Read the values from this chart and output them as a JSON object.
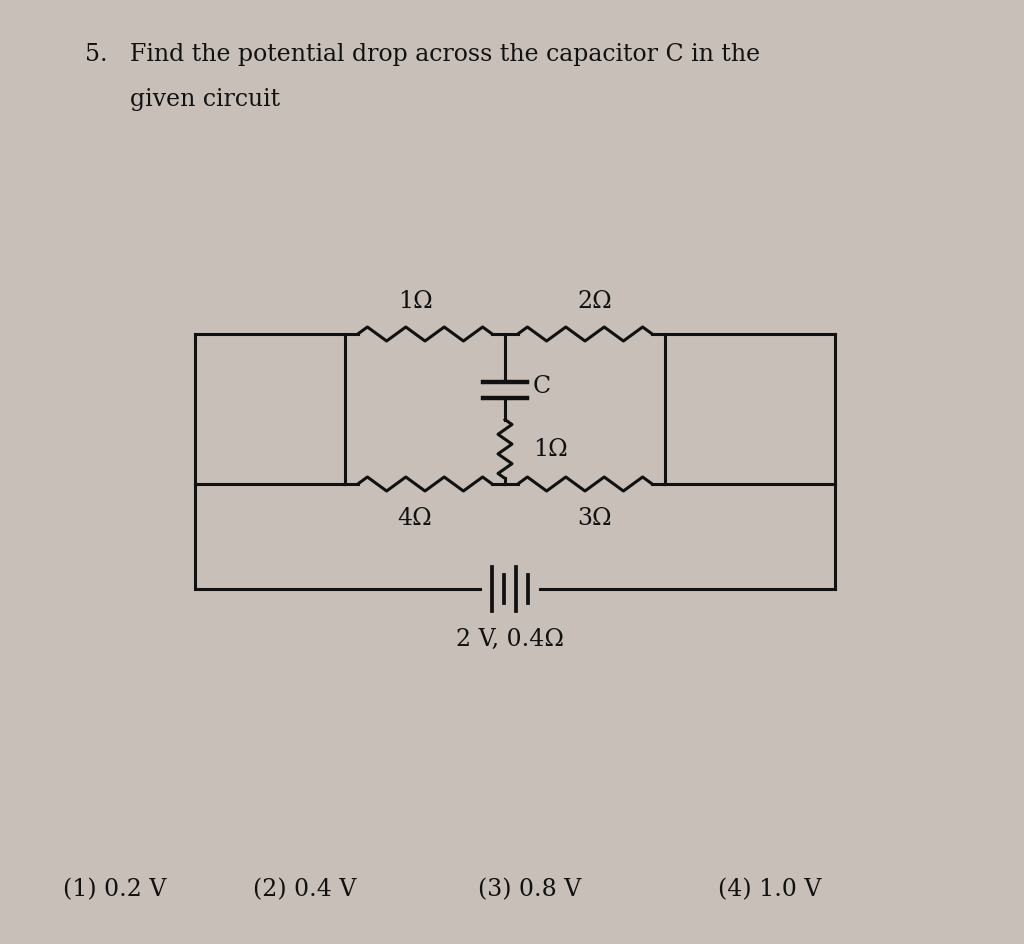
{
  "title_line1": "Find the potential drop across the capacitor C in the",
  "title_line2": "given circuit",
  "question_number": "5.",
  "background_color": "#c8c0b8",
  "circuit_color": "#111111",
  "options": [
    "(1) 0.2 V",
    "(2) 0.4 V",
    "(3) 0.8 V",
    "(4) 1.0 V"
  ],
  "res_top_left": "1Ω",
  "res_top_right": "2Ω",
  "res_mid": "1Ω",
  "res_bot_left": "4Ω",
  "res_bot_right": "3Ω",
  "cap_label": "C",
  "battery_label": "2 V, 0.4Ω"
}
